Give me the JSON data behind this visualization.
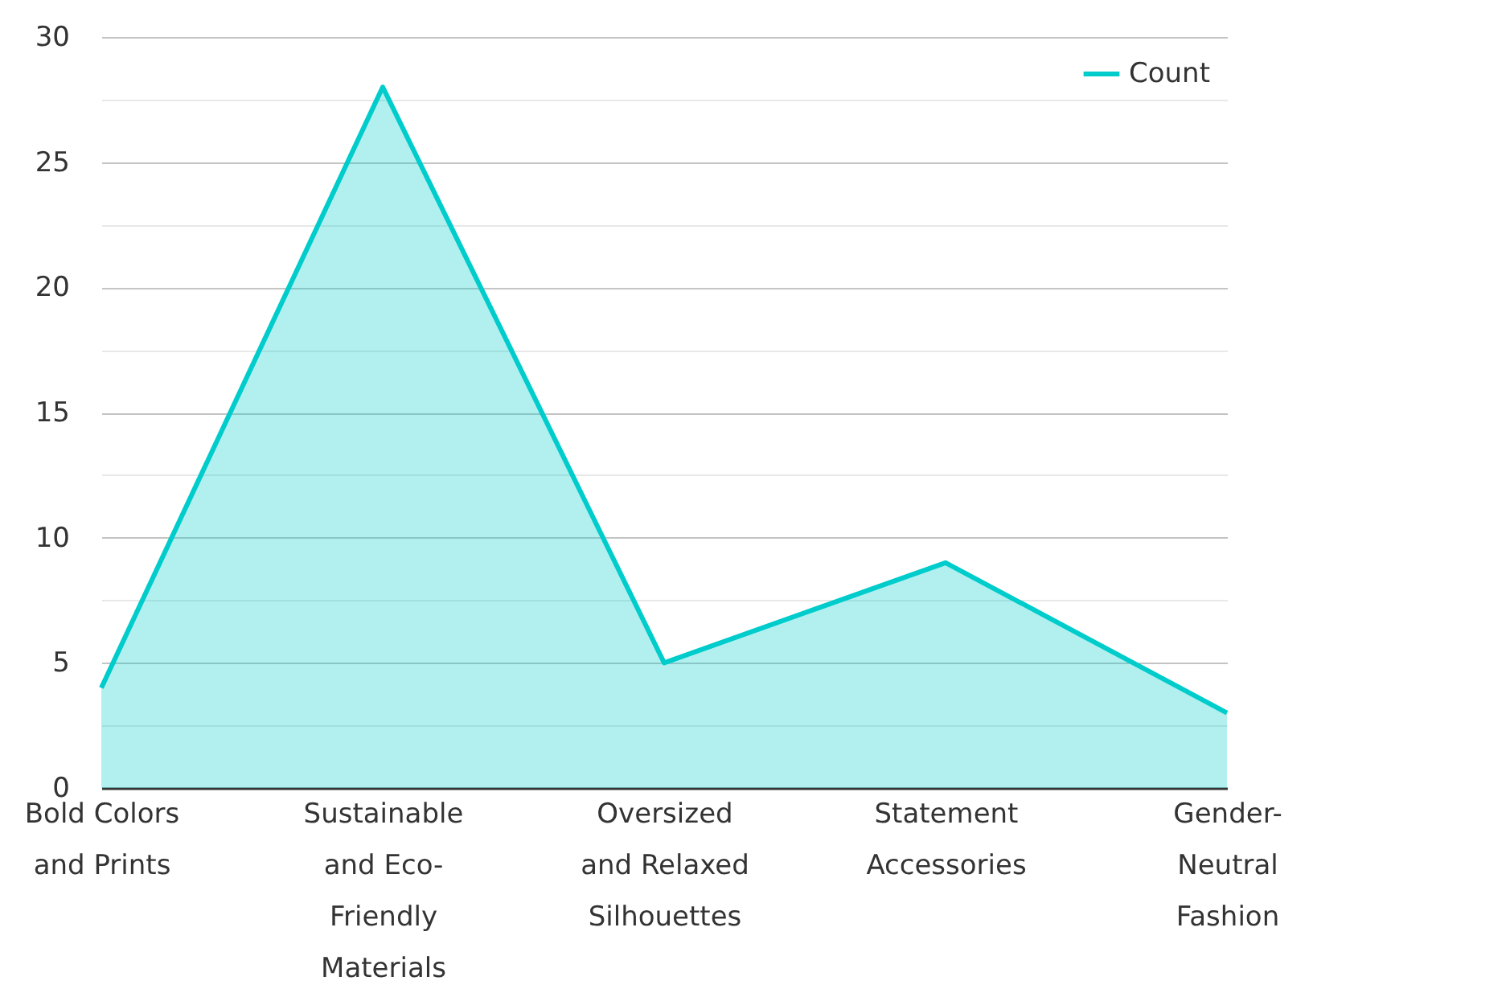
{
  "chart_data": {
    "type": "area",
    "categories": [
      "Bold Colors and Prints",
      "Sustainable and Eco-Friendly Materials",
      "Oversized and Relaxed Silhouettes",
      "Statement Accessories",
      "Gender-Neutral Fashion"
    ],
    "series": [
      {
        "name": "Count",
        "color": "#00cccc",
        "values": [
          4,
          28,
          5,
          9,
          3
        ]
      }
    ],
    "ylim": [
      0,
      30
    ],
    "yticks": [
      0,
      {
        "value": 2.5,
        "label": null
      },
      5,
      {
        "value": 7.5,
        "label": null
      },
      10,
      {
        "value": 12.5,
        "label": null
      },
      15,
      {
        "value": 17.5,
        "label": null
      },
      20,
      {
        "value": 22.5,
        "label": null
      },
      25,
      {
        "value": 27.5,
        "label": null
      },
      30
    ],
    "grid": "y",
    "legend": "top right"
  }
}
